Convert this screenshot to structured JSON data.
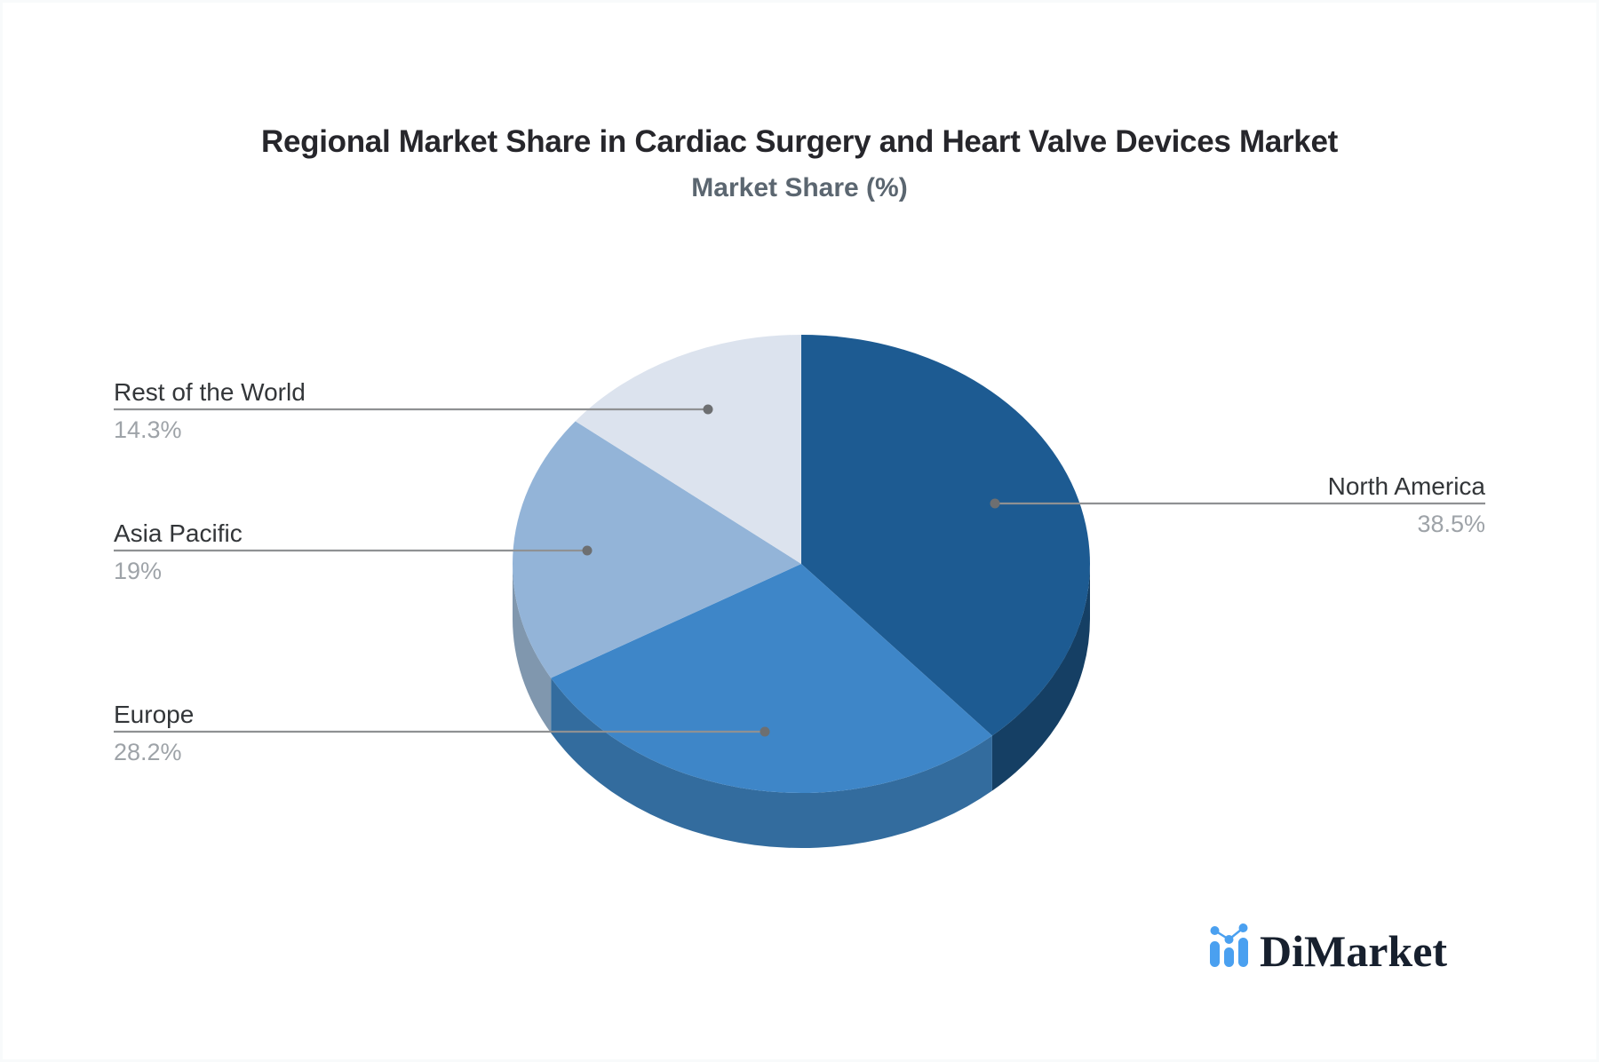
{
  "title": "Regional Market Share in Cardiac Surgery and Heart Valve Devices Market",
  "subtitle": "Market Share (%)",
  "chart_data": {
    "type": "pie",
    "style": "3d",
    "title": "Regional Market Share in Cardiac Surgery and Heart Valve Devices Market",
    "subtitle": "Market Share (%)",
    "unit": "%",
    "start_angle_deg": 0,
    "direction": "clockwise",
    "legend_position": "callout-labels",
    "categories": [
      "North America",
      "Europe",
      "Asia Pacific",
      "Rest of the World"
    ],
    "values": [
      38.5,
      28.2,
      19,
      14.3
    ],
    "labels_pct": [
      "38.5%",
      "28.2%",
      "19%",
      "14.3%"
    ],
    "colors_top": [
      "#1d5b92",
      "#3e86c8",
      "#93b4d8",
      "#dce3ee"
    ],
    "colors_side": [
      "#153f64",
      "#336c9e",
      "#8097ae",
      "#b9c4d3"
    ]
  },
  "palette": {
    "title_color": "#26262b",
    "subtitle_color": "#5b6670",
    "label_color": "#333639",
    "value_color": "#9ea3a8",
    "line_color": "#8f9193",
    "dot_color": "#6d6f71",
    "logo_icon_color": "#4aa0f0",
    "logo_text_color": "#17202e"
  },
  "logo": {
    "text": "DiMarket"
  }
}
